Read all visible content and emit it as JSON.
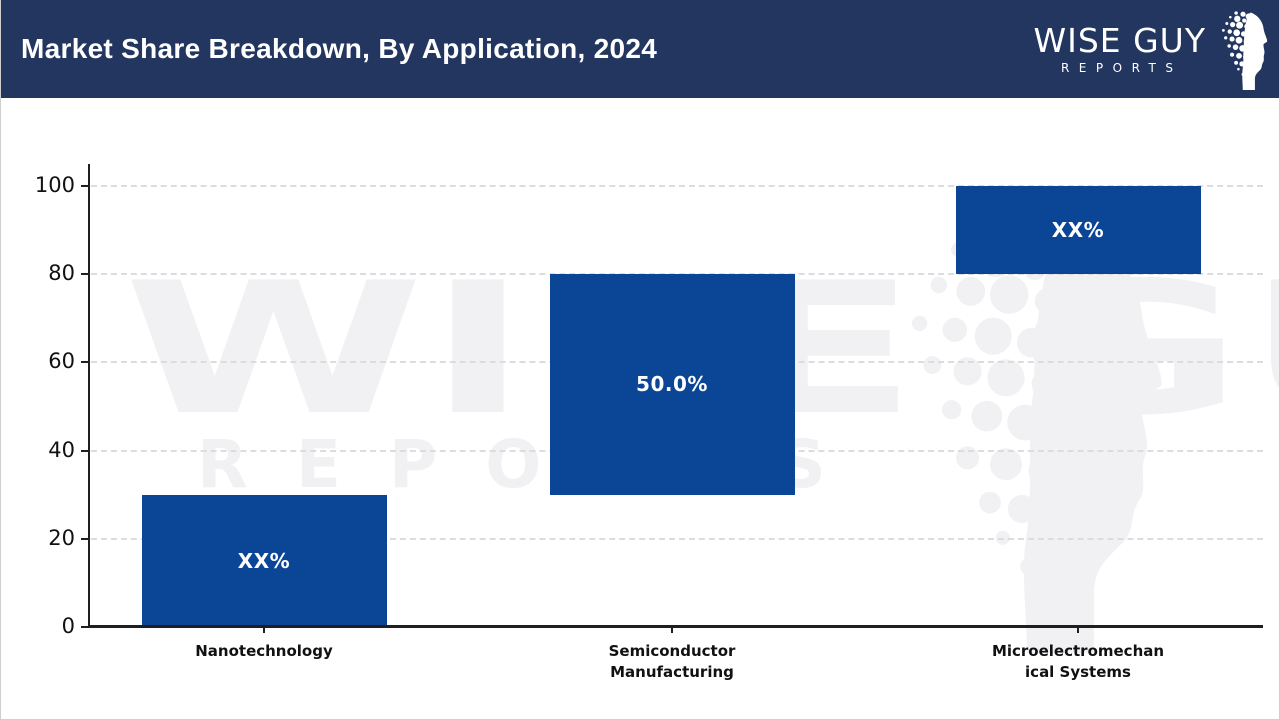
{
  "header": {
    "title": "Market Share Breakdown, By Application, 2024",
    "logo": {
      "name": "WISE GUY REPORTS",
      "line1": "WISE GUY",
      "line2": "REPORTS"
    }
  },
  "watermark": {
    "line1": "WISE GUY",
    "line2": "REPORTS"
  },
  "chart_data": {
    "type": "bar",
    "subtype": "floating-range-bars",
    "title": "Market Share Breakdown, By Application, 2024",
    "categories": [
      "Nanotechnology",
      "Semiconductor Manufacturing",
      "Microelectromechanical Systems"
    ],
    "category_label_lines": [
      [
        "Nanotechnology"
      ],
      [
        "Semiconductor",
        "Manufacturing"
      ],
      [
        "Microelectromechan",
        "ical Systems"
      ]
    ],
    "bars": [
      {
        "category": "Nanotechnology",
        "from": 0,
        "to": 30,
        "label": "XX%"
      },
      {
        "category": "Semiconductor Manufacturing",
        "from": 30,
        "to": 80,
        "label": "50.0%"
      },
      {
        "category": "Microelectromechanical Systems",
        "from": 80,
        "to": 100,
        "label": "XX%"
      }
    ],
    "yticks": [
      0,
      20,
      40,
      60,
      80,
      100
    ],
    "ylim": [
      0,
      105
    ],
    "xlabel": "",
    "ylabel": "",
    "grid": "horizontal-dashed",
    "legend": "none",
    "colors": {
      "bar": "#0b4596",
      "bar_label": "#ffffff",
      "header_bg": "#22365f",
      "grid": "#dcdcdc",
      "axis": "#1f1f1f",
      "watermark": "#f1f1f4"
    }
  }
}
